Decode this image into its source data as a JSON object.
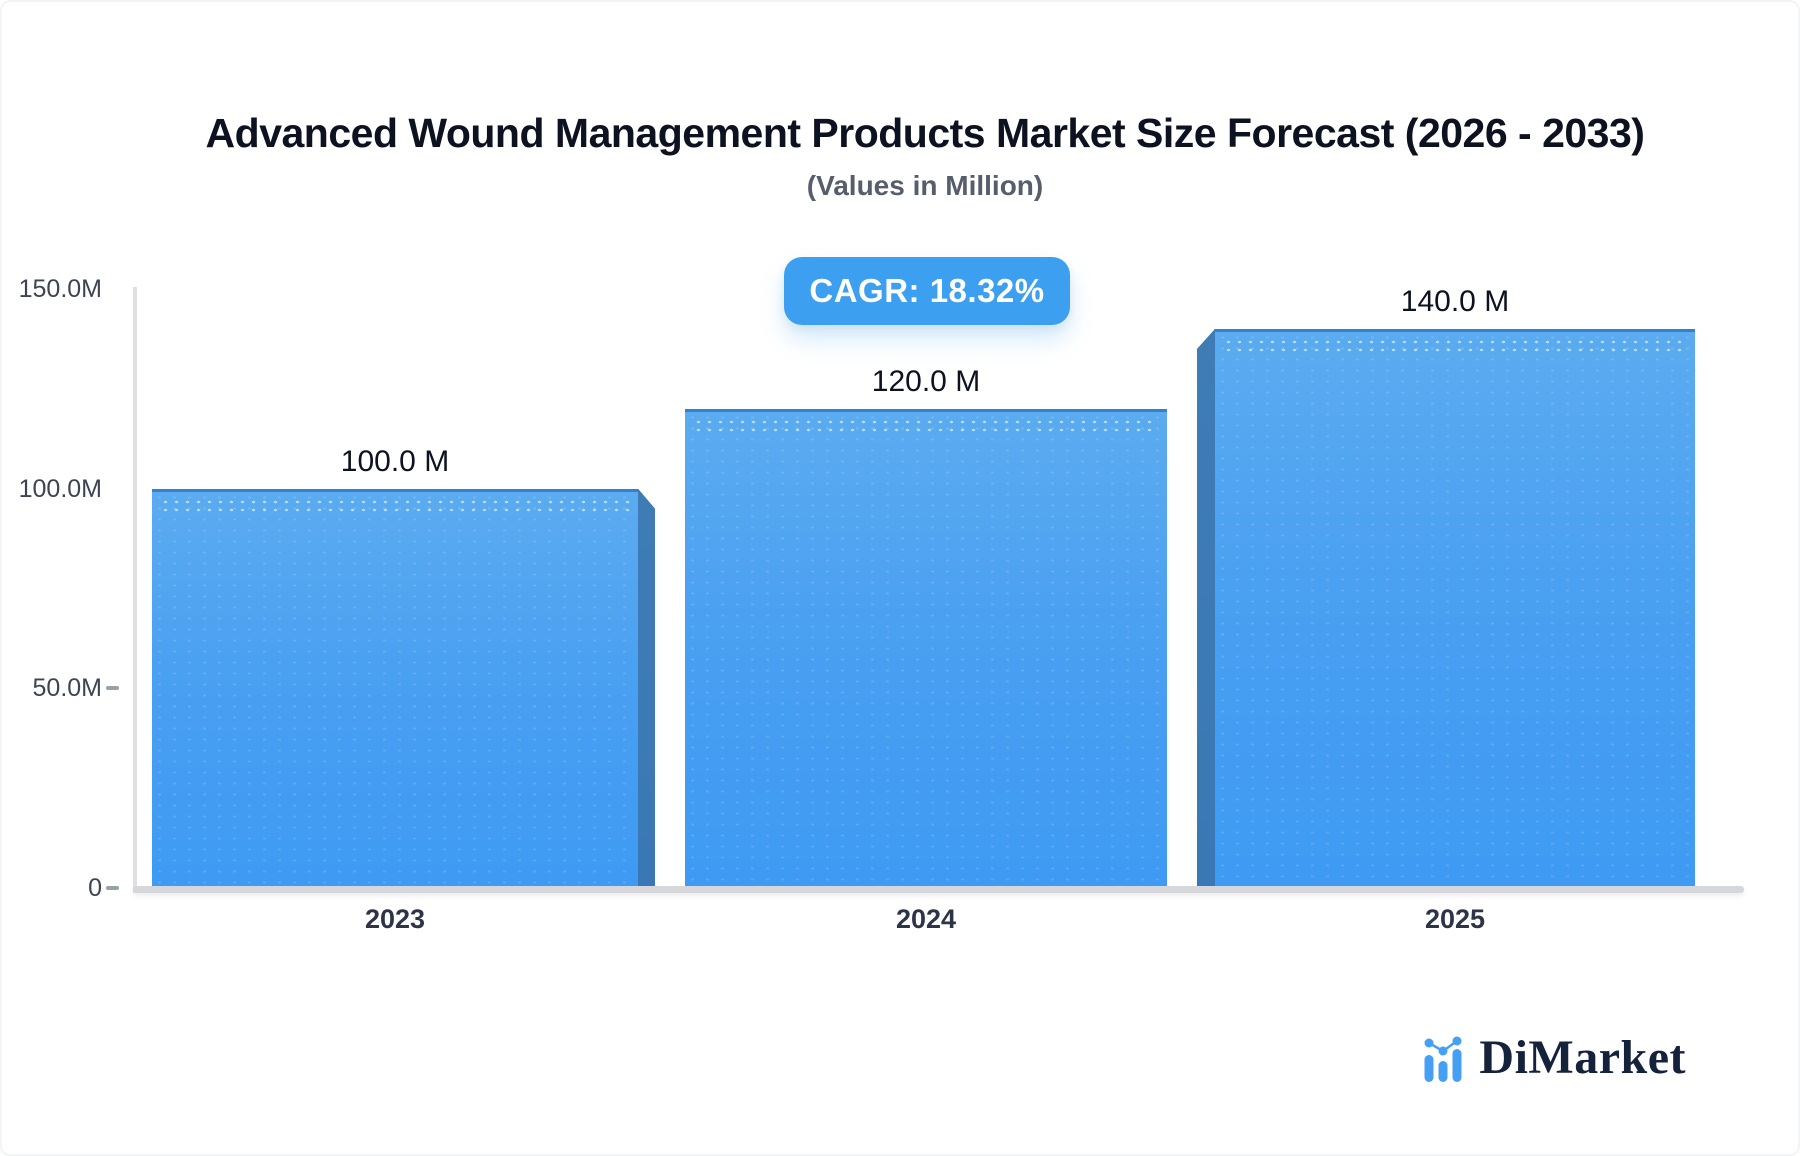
{
  "header": {
    "title": "Advanced Wound Management Products Market Size Forecast (2026 - 2033)",
    "subtitle": "(Values in Million)"
  },
  "cagr_badge": {
    "label": "CAGR: 18.32%",
    "background_color": "#3d9ff0",
    "text_color": "#ffffff"
  },
  "chart_data": {
    "type": "bar",
    "title": "Advanced Wound Management Products Market Size Forecast (2026 - 2033)",
    "subtitle": "(Values in Million)",
    "unit": "Million (M)",
    "cagr_percent": 18.32,
    "categories": [
      "2023",
      "2024",
      "2025"
    ],
    "values": [
      100.0,
      120.0,
      140.0
    ],
    "value_labels": [
      "100.0 M",
      "120.0 M",
      "140.0 M"
    ],
    "y_ticks": [
      {
        "label": "150.0M",
        "value": 150
      },
      {
        "label": "100.0M",
        "value": 100
      },
      {
        "label": "50.0M",
        "value": 50
      },
      {
        "label": "0",
        "value": 0
      }
    ],
    "ylim": [
      0,
      150
    ],
    "xlabel": "",
    "ylabel": "",
    "grid": "off",
    "legend": "none",
    "bar_color_top": "#5babf0",
    "bar_color_bottom": "#3e9af3",
    "bar_side_color": "#3a78b5",
    "axis_color": "#d6d7db",
    "style": "3d-extruded-bars"
  },
  "branding": {
    "logo_text": "DiMarket",
    "logo_icon": "bar-chart-trend-icon",
    "logo_text_color": "#15223c",
    "logo_icon_color": "#45a0f5"
  }
}
